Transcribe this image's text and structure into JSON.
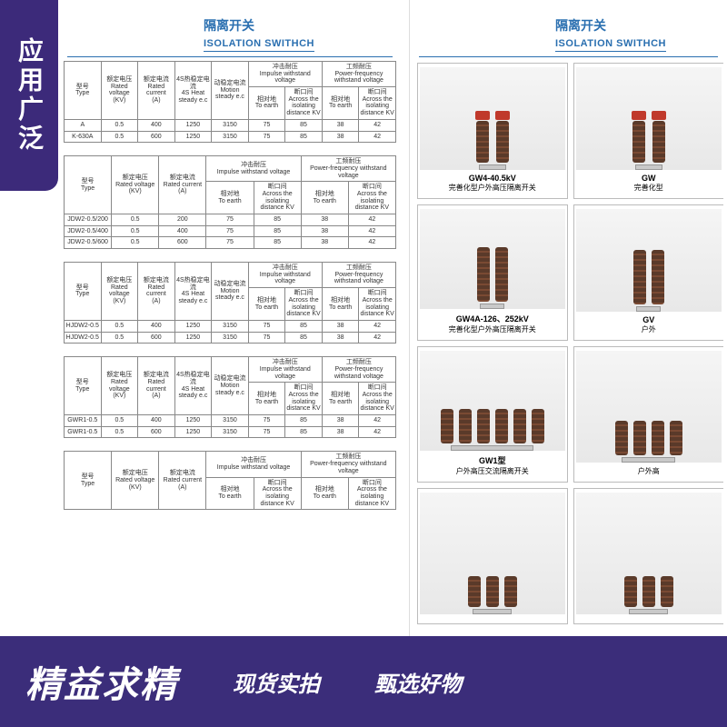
{
  "badge_left": "应用广泛",
  "ribbon": {
    "big": "精益求精",
    "sub1": "现货实拍",
    "sub2": "甄选好物"
  },
  "heading": {
    "cn": "隔离开关",
    "en": "ISOLATION SWITHCH"
  },
  "table_headers_full": {
    "type": {
      "cn": "型号",
      "en": "Type"
    },
    "rated_voltage": {
      "cn": "额定电压",
      "en": "Rated voltage",
      "unit": "(KV)"
    },
    "rated_current": {
      "cn": "额定电流",
      "en": "Rated current",
      "unit": "(A)"
    },
    "heat_steady": {
      "cn": "4S热稳定电流",
      "en": "4S Heat steady e.c"
    },
    "motion_steady": {
      "cn": "动稳定电流",
      "en": "Motion steady e.c"
    },
    "impulse": {
      "cn": "冲击耐压",
      "en": "Impulse withstand voltage"
    },
    "power_freq": {
      "cn": "工频耐压",
      "en": "Power-frequency withstand voltage"
    },
    "to_earth": {
      "cn": "相对地",
      "en": "To earth"
    },
    "across": {
      "cn": "断口间",
      "en": "Across the isolating distance KV"
    },
    "to_earth2": {
      "cn": "相对地",
      "en": "To earth"
    },
    "across2": {
      "cn": "断口间",
      "en": "Across the isolating distance KV"
    }
  },
  "table1": {
    "cols": "full",
    "rows": [
      {
        "type": "A",
        "kv": "0.5",
        "a": "400",
        "hs": "1250",
        "ms": "3150",
        "i1": "75",
        "i2": "85",
        "p1": "38",
        "p2": "42"
      },
      {
        "type": "K-630A",
        "kv": "0.5",
        "a": "600",
        "hs": "1250",
        "ms": "3150",
        "i1": "75",
        "i2": "85",
        "p1": "38",
        "p2": "42"
      }
    ]
  },
  "table2": {
    "cols": "short",
    "rows": [
      {
        "type": "JDW2-0.5/200",
        "kv": "0.5",
        "a": "200",
        "i1": "75",
        "i2": "85",
        "p1": "38",
        "p2": "42"
      },
      {
        "type": "JDW2-0.5/400",
        "kv": "0.5",
        "a": "400",
        "i1": "75",
        "i2": "85",
        "p1": "38",
        "p2": "42"
      },
      {
        "type": "JDW2-0.5/600",
        "kv": "0.5",
        "a": "600",
        "i1": "75",
        "i2": "85",
        "p1": "38",
        "p2": "42"
      }
    ]
  },
  "table3": {
    "cols": "full",
    "rows": [
      {
        "type": "HJDW2-0.5",
        "kv": "0.5",
        "a": "400",
        "hs": "1250",
        "ms": "3150",
        "i1": "75",
        "i2": "85",
        "p1": "38",
        "p2": "42"
      },
      {
        "type": "HJDW2-0.5",
        "kv": "0.5",
        "a": "600",
        "hs": "1250",
        "ms": "3150",
        "i1": "75",
        "i2": "85",
        "p1": "38",
        "p2": "42"
      }
    ]
  },
  "table4": {
    "cols": "full",
    "rows": [
      {
        "type": "GWR1-0.5",
        "kv": "0.5",
        "a": "400",
        "hs": "1250",
        "ms": "3150",
        "i1": "75",
        "i2": "85",
        "p1": "38",
        "p2": "42"
      },
      {
        "type": "GWR1-0.5",
        "kv": "0.5",
        "a": "600",
        "hs": "1250",
        "ms": "3150",
        "i1": "75",
        "i2": "85",
        "p1": "38",
        "p2": "42"
      }
    ]
  },
  "table5": {
    "cols": "short",
    "rows": []
  },
  "products": [
    {
      "code": "GW4-40.5kV",
      "desc": "完善化型户外高压隔离开关",
      "ins_h": 46,
      "ins_n": 2,
      "red": true
    },
    {
      "code": "GW",
      "desc": "完善化型",
      "ins_h": 46,
      "ins_n": 2,
      "red": true,
      "clipped": true
    },
    {
      "code": "GW4A-126、252kV",
      "desc": "完善化型户外高压隔离开关",
      "ins_h": 60,
      "ins_n": 2,
      "red": false
    },
    {
      "code": "GV",
      "desc": "户外",
      "ins_h": 60,
      "ins_n": 2,
      "red": false,
      "clipped": true
    },
    {
      "code": "GW1型",
      "desc": "户外高压交流隔离开关",
      "ins_h": 38,
      "ins_n": 6,
      "red": false
    },
    {
      "code": "",
      "desc": "户外高",
      "ins_h": 38,
      "ins_n": 4,
      "red": false,
      "clipped": true
    },
    {
      "code": "",
      "desc": "",
      "ins_h": 34,
      "ins_n": 3,
      "red": false
    },
    {
      "code": "",
      "desc": "",
      "ins_h": 34,
      "ins_n": 3,
      "red": false,
      "clipped": true
    }
  ],
  "colors": {
    "purple": "#3b2d7a",
    "blue": "#2a6fb0",
    "insulator": "#5a3a2a",
    "red": "#c0392b"
  }
}
